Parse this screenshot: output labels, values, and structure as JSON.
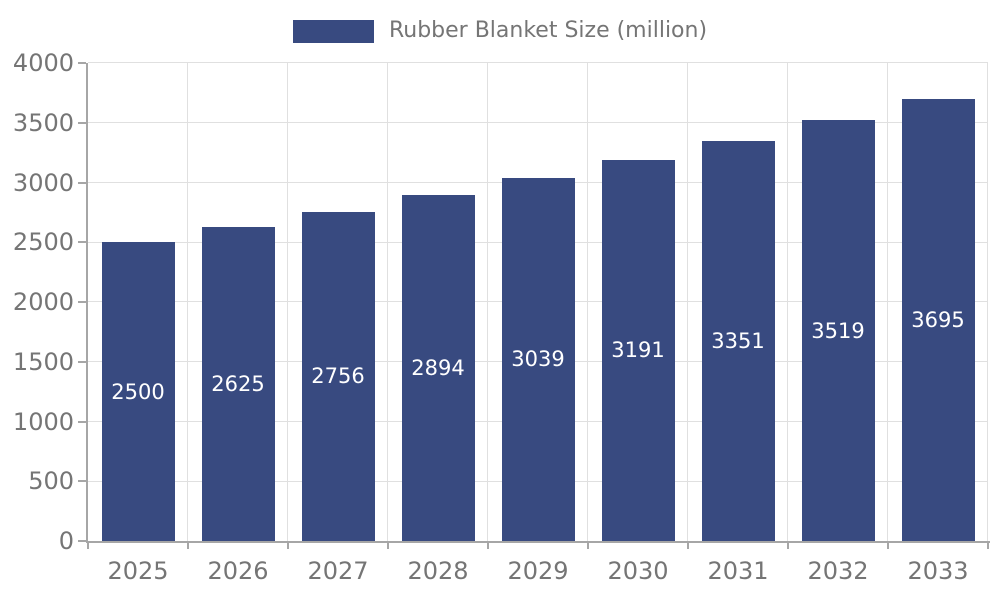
{
  "chart_data": {
    "type": "bar",
    "title": "Rubber Blanket Size (million)",
    "legend": [
      "Rubber Blanket Size (million)"
    ],
    "legend_position": "top-center",
    "categories": [
      "2025",
      "2026",
      "2027",
      "2028",
      "2029",
      "2030",
      "2031",
      "2032",
      "2033"
    ],
    "values": [
      2500,
      2625,
      2756,
      2894,
      3039,
      3191,
      3351,
      3519,
      3695
    ],
    "xlabel": "",
    "ylabel": "",
    "ylim": [
      0,
      4000
    ],
    "ytick_step": 500,
    "yticks": [
      0,
      500,
      1000,
      1500,
      2000,
      2500,
      3000,
      3500,
      4000
    ],
    "grid": true,
    "value_labels_shown": true
  },
  "colors": {
    "bar": "#384a80",
    "grid": "#e0e0e0",
    "axis": "#a6a6a6",
    "tick_text": "#757575",
    "value_text": "#ffffff",
    "background": "#ffffff"
  }
}
